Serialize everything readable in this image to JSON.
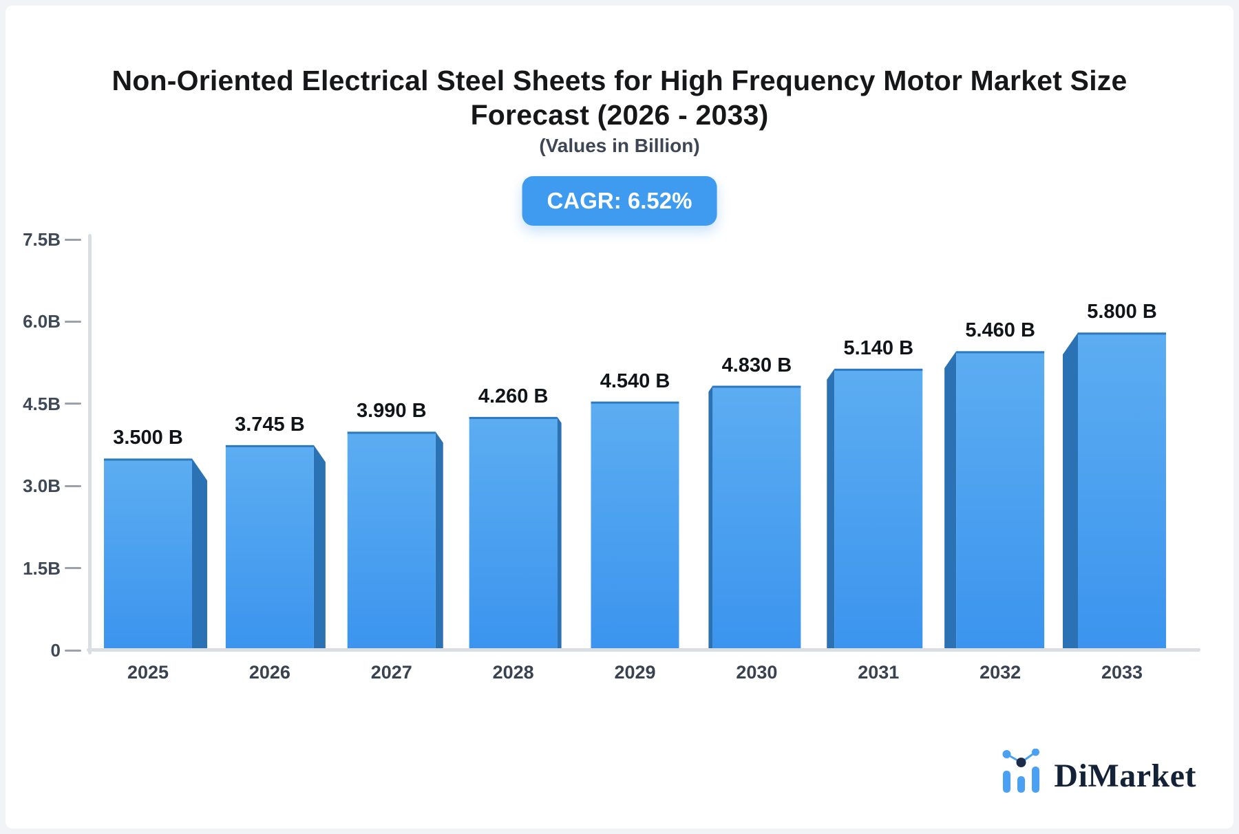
{
  "header": {
    "title": "Non-Oriented Electrical Steel Sheets for High Frequency Motor Market Size Forecast (2026 - 2033)",
    "subtitle": "(Values in Billion)",
    "cagr_badge": "CAGR: 6.52%"
  },
  "chart_data": {
    "type": "bar",
    "title": "Non-Oriented Electrical Steel Sheets for High Frequency Motor Market Size Forecast (2026 - 2033)",
    "subtitle": "(Values in Billion)",
    "cagr": "6.52%",
    "unit": "Billion",
    "categories": [
      "2025",
      "2026",
      "2027",
      "2028",
      "2029",
      "2030",
      "2031",
      "2032",
      "2033"
    ],
    "values": [
      3.5,
      3.745,
      3.99,
      4.26,
      4.54,
      4.83,
      5.14,
      5.46,
      5.8
    ],
    "bar_labels": [
      "3.500 B",
      "3.745 B",
      "3.990 B",
      "4.260 B",
      "4.540 B",
      "4.830 B",
      "5.140 B",
      "5.460 B",
      "5.800 B"
    ],
    "ylim": [
      0,
      7.5
    ],
    "ytick_values": [
      0,
      1.5,
      3.0,
      4.5,
      6.0,
      7.5
    ],
    "ytick_labels": [
      "0",
      "1.5B",
      "3.0B",
      "4.5B",
      "6.0B",
      "7.5B"
    ],
    "grid": false,
    "legend": false,
    "bar_style": "3d-perspective-center",
    "colors": {
      "bar_face_top": "#5CADF1",
      "bar_face_bottom": "#3B94EE",
      "bar_side": "#2B72B4",
      "bar_top_edge": "#2E79BE",
      "axis_line": "#DADDE2",
      "tick_dash": "#9AA1AB",
      "tick_label": "#3E4856",
      "value_label": "#111419",
      "year_label": "#394250",
      "badge_bg": "#3E9BF0",
      "badge_text": "#FFFFFF"
    }
  },
  "footer": {
    "brand": "DiMarket",
    "logo_icon": "bar-line-chart-icon",
    "logo_bar_color": "#4AA0F2",
    "logo_dot_dark": "#1D2B4A",
    "logo_text_color": "#142238"
  }
}
